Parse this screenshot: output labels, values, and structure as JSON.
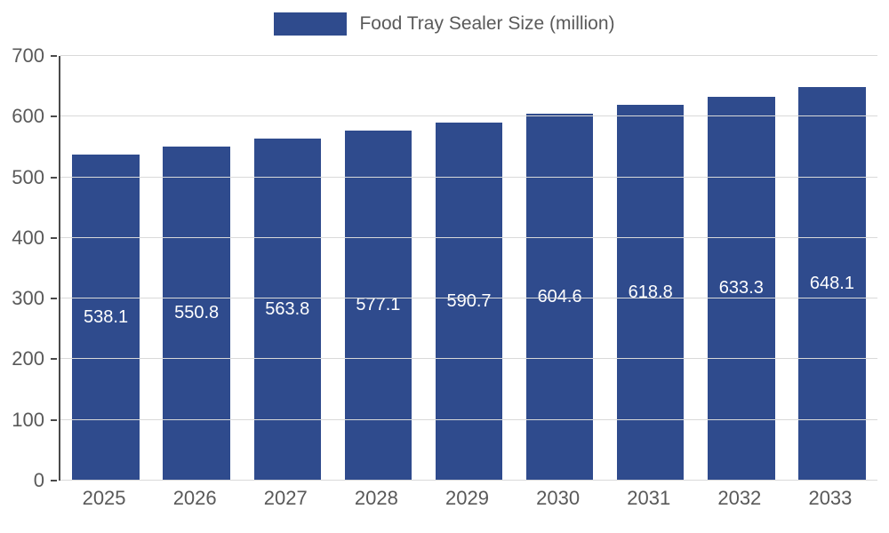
{
  "chart_data": {
    "type": "bar",
    "title": "Food Tray Sealer Size (million)",
    "categories": [
      "2025",
      "2026",
      "2027",
      "2028",
      "2029",
      "2030",
      "2031",
      "2032",
      "2033"
    ],
    "values": [
      538.1,
      550.8,
      563.8,
      577.1,
      590.7,
      604.6,
      618.8,
      633.3,
      648.1
    ],
    "value_labels": [
      "538.1",
      "550.8",
      "563.8",
      "577.1",
      "590.7",
      "604.6",
      "618.8",
      "633.3",
      "648.1"
    ],
    "xlabel": "",
    "ylabel": "",
    "ylim": [
      0,
      700
    ],
    "yticks": [
      0,
      100,
      200,
      300,
      400,
      500,
      600,
      700
    ],
    "grid": "horizontal",
    "legend_position": "top-center",
    "colors": {
      "bar": "#2f4b8d",
      "axis_text": "#595959",
      "gridline": "#d9d9d9",
      "axis_line": "#4a4a4a",
      "bar_label_text": "#ffffff",
      "background": "#ffffff"
    }
  }
}
